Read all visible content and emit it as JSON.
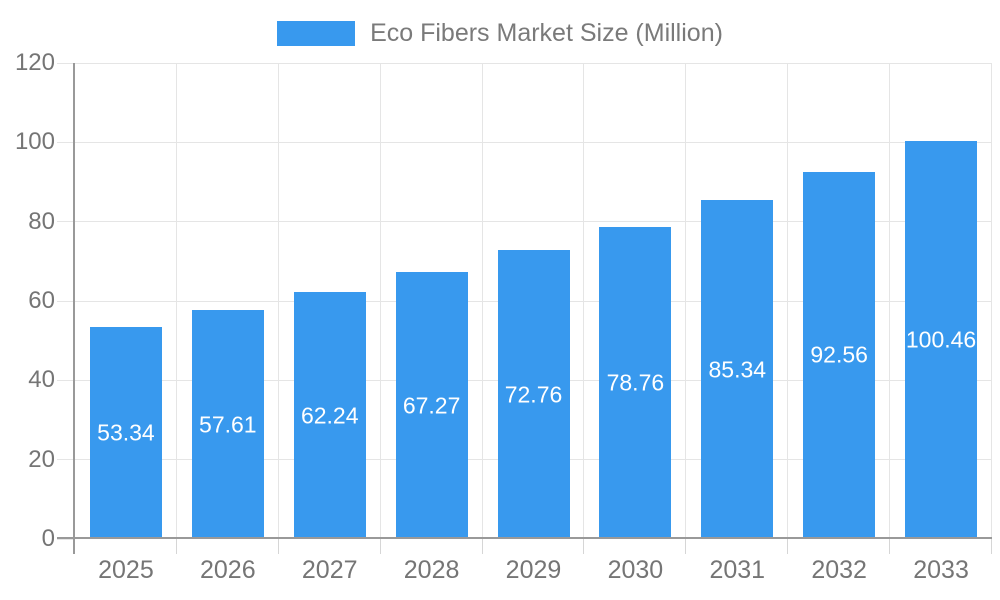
{
  "legend": {
    "label": "Eco Fibers Market Size (Million)",
    "position": "top"
  },
  "chart_data": {
    "type": "bar",
    "title": "Eco Fibers Market Size (Million)",
    "categories": [
      "2025",
      "2026",
      "2027",
      "2028",
      "2029",
      "2030",
      "2031",
      "2032",
      "2033"
    ],
    "values": [
      53.34,
      57.61,
      62.24,
      67.27,
      72.76,
      78.76,
      85.34,
      92.56,
      100.46
    ],
    "value_labels": [
      "53.34",
      "57.61",
      "62.24",
      "67.27",
      "72.76",
      "78.76",
      "85.34",
      "92.56",
      "100.46"
    ],
    "series_name": "Eco Fibers Market Size (Million)",
    "xlabel": "",
    "ylabel": "",
    "ylim": [
      0,
      120
    ],
    "yticks": [
      0,
      20,
      40,
      60,
      80,
      100,
      120
    ],
    "grid": true,
    "legend_position": "top",
    "value_label_position": "center-of-bar",
    "colors": {
      "bar": "#3899EE",
      "grid_line": "#E5E5E5",
      "axis_line": "#999999",
      "tick_mark": "#D6D6D6",
      "tick_label": "#757575",
      "legend_text": "#7A7A7A",
      "bar_label": "#FFFFFF",
      "background": "#FFFFFF"
    }
  }
}
